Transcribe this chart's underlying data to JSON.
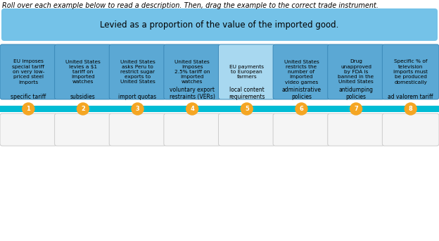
{
  "title": "Roll over each example below to read a description. Then, drag the example to the correct trade instrument.",
  "highlight_box_text": "Levied as a proportion of the value of the imported good.",
  "card_texts": [
    "EU imposes\nspecial tariff\non very low-\npriced steel\nimports",
    "United States\nlevies a $1\ntariff on\nimported\nwatches",
    "United States\nasks Peru to\nrestrict sugar\nexports to\nUnited States",
    "United States\nimposes\n2.5% tariff on\nimported\nwatches",
    "EU payments\nto European\nfarmers",
    "United States\nrestricts the\nnumber of\nimported\nvideo games",
    "Drug\nunapproved\nby FDA is\nbanned in the\nUnited States",
    "Specific % of\ntelevision\nimports must\nbe produced\ndomestically"
  ],
  "card_highlight_index": 4,
  "labels": [
    "specific tariff",
    "subsidies",
    "import quotas",
    "voluntary export\nrestraints (VERs)",
    "local content\nrequirements",
    "administrative\npolicies",
    "antidumping\npolicies",
    "ad valorem tariff"
  ],
  "numbers": [
    "1",
    "2",
    "3",
    "4",
    "5",
    "6",
    "7",
    "8"
  ],
  "bg_color": "#ffffff",
  "highlight_box_color": "#74c2e8",
  "card_color_dark": "#5ba8d4",
  "card_color_light": "#a8d8f0",
  "timeline_color": "#00bcd4",
  "circle_color": "#f5a623",
  "circle_text_color": "#ffffff",
  "title_color": "#000000",
  "label_color": "#000000",
  "card_text_color": "#000000",
  "bottom_box_color": "#f5f5f5",
  "bottom_box_border": "#cccccc",
  "card_border_color": "#3a88b8"
}
